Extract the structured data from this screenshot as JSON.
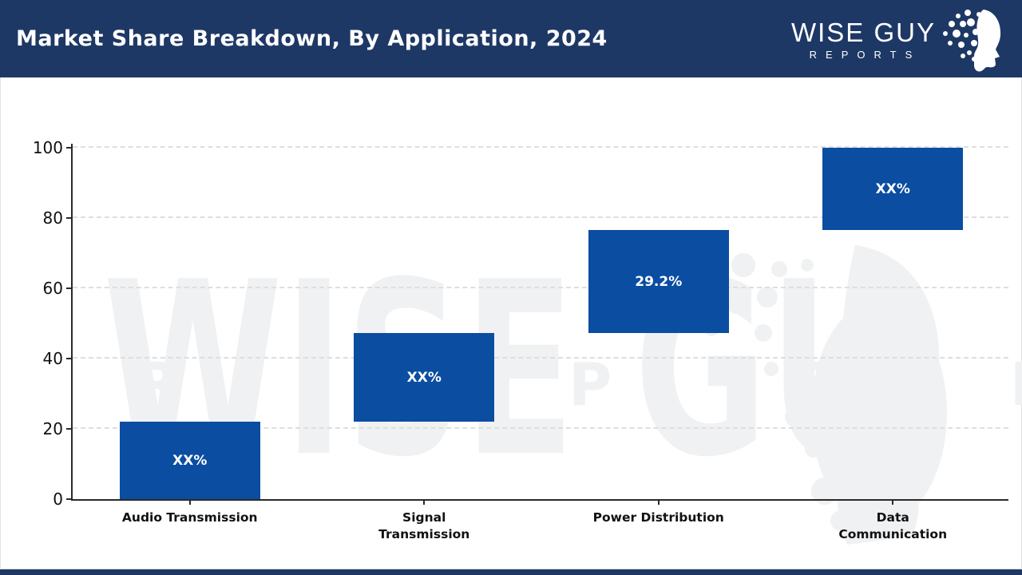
{
  "header": {
    "title": "Market Share Breakdown, By Application, 2024",
    "logo": {
      "line1": "WISE GUY",
      "line2": "REPORTS"
    }
  },
  "watermark": {
    "word": "WISE GU",
    "reports": "R E P O R T S"
  },
  "chart_data": {
    "type": "bar",
    "subtype": "waterfall (floating cumulative bars)",
    "title": "Market Share Breakdown, By Application, 2024",
    "xlabel": "",
    "ylabel": "",
    "ylim": [
      0,
      100
    ],
    "yticks": [
      0,
      20,
      40,
      60,
      80,
      100
    ],
    "ytick_labels": [
      "0",
      "20",
      "40",
      "60",
      "80",
      "100"
    ],
    "grid": "horizontal dashed, light gray",
    "bar_color": "#0b4da1",
    "label_color": "#ffffff",
    "categories": [
      "Audio Transmission",
      "Signal\nTransmission",
      "Power Distribution",
      "Data Communication"
    ],
    "segments": [
      {
        "label": "Audio Transmission",
        "start": 0,
        "end": 22,
        "value_label": "XX%"
      },
      {
        "label": "Signal Transmission",
        "start": 22,
        "end": 47.3,
        "value_label": "XX%"
      },
      {
        "label": "Power Distribution",
        "start": 47.3,
        "end": 76.5,
        "value_label": "29.2%"
      },
      {
        "label": "Data Communication",
        "start": 76.5,
        "end": 100,
        "value_label": "XX%"
      }
    ]
  },
  "colors": {
    "header_bg": "#1e3866",
    "bar": "#0b4da1",
    "watermark": "#f0f1f3",
    "axis": "#2a2a2a",
    "grid": "#dedede"
  }
}
